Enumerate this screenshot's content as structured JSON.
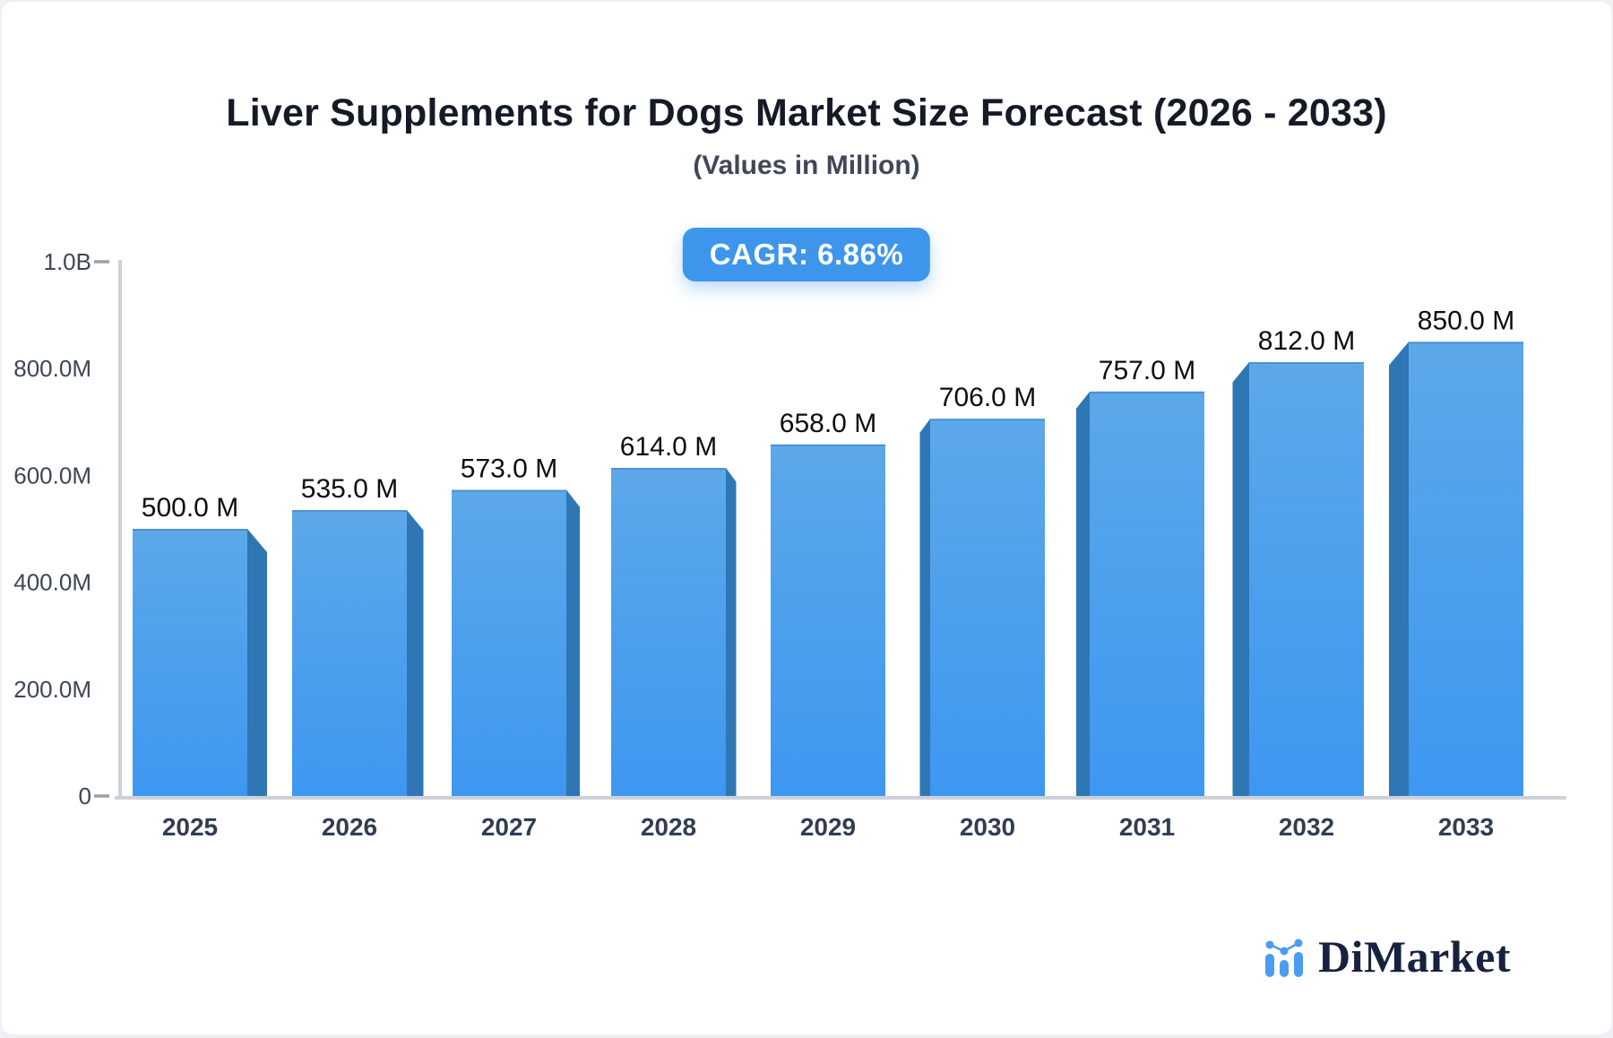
{
  "header": {
    "title": "Liver Supplements for Dogs Market Size Forecast (2026 - 2033)",
    "subtitle": "(Values in Million)"
  },
  "badge": {
    "label": "CAGR: 6.86%",
    "bg": "#3E96EC",
    "text_color": "#FFFFFF"
  },
  "chart_data": {
    "type": "bar",
    "title": "Liver Supplements for Dogs Market Size Forecast (2026 - 2033)",
    "subtitle": "(Values in Million)",
    "cagr": "6.86%",
    "categories": [
      "2025",
      "2026",
      "2027",
      "2028",
      "2029",
      "2030",
      "2031",
      "2032",
      "2033"
    ],
    "values": [
      500,
      535,
      573,
      614,
      658,
      706,
      757,
      812,
      850
    ],
    "value_labels": [
      "500.0 M",
      "535.0 M",
      "573.0 M",
      "614.0 M",
      "658.0 M",
      "706.0 M",
      "757.0 M",
      "812.0 M",
      "850.0 M"
    ],
    "value_unit": "M",
    "xlabel": "",
    "ylabel": "",
    "ylim": [
      0,
      1000
    ],
    "yticks": [
      {
        "v": 0,
        "label": "0"
      },
      {
        "v": 200,
        "label": "200.0M"
      },
      {
        "v": 400,
        "label": "400.0M"
      },
      {
        "v": 600,
        "label": "600.0M"
      },
      {
        "v": 800,
        "label": "800.0M"
      },
      {
        "v": 1000,
        "label": "1.0B"
      }
    ],
    "grid": false,
    "legend": "none",
    "bar_style": "3d-extruded, vanishing point at center bar",
    "colors": {
      "bar_front_top": "#5CA8E9",
      "bar_front_bottom": "#3E97F0",
      "bar_side": "#2F76B4",
      "bar_top_edge": "#4C92D4",
      "axis_line": "#CDD1D8",
      "tick": "#9AA1AC",
      "value_label": "#0D0E10",
      "year_label": "#313D55",
      "ytick_label": "#3D4654"
    }
  },
  "logo": {
    "text": "DiMarket",
    "icon": "mini-bar-chart-icon",
    "accent": "#4A9DF0",
    "text_color": "#17233E"
  }
}
